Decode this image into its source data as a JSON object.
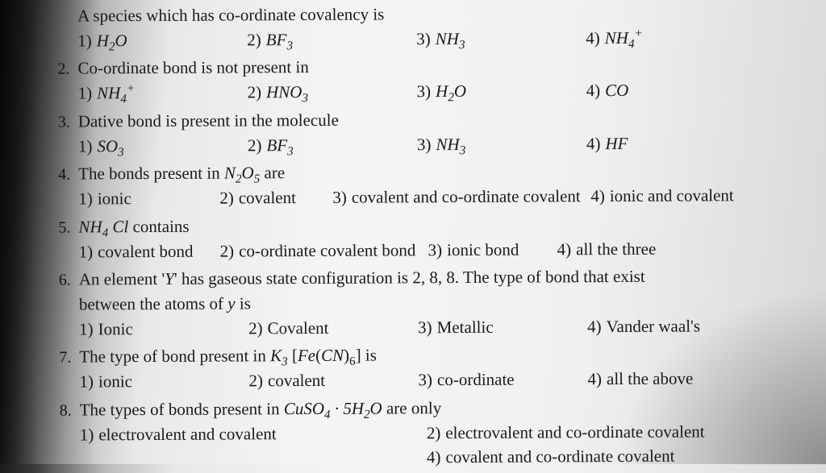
{
  "q1": {
    "stem_prefix": "A species which has co-ordinate covalency is",
    "o1": "H",
    "o1_sub": "2",
    "o1_suffix": "O",
    "o2": "BF",
    "o2_sub": "3",
    "o3": "NH",
    "o3_sub": "3",
    "o4": "NH",
    "o4_sub": "4",
    "o4_sup": "+"
  },
  "q2": {
    "num": "2.",
    "stem": "Co-ordinate bond is not present in",
    "o1": "NH",
    "o1_sub": "4",
    "o1_sup": "+",
    "o2": "HNO",
    "o2_sub": "3",
    "o3": "H",
    "o3_sub": "2",
    "o3_suffix": "O",
    "o4": "CO"
  },
  "q3": {
    "num": "3.",
    "stem": "Dative bond is present in the molecule",
    "o1": "SO",
    "o1_sub": "3",
    "o2": "BF",
    "o2_sub": "3",
    "o3": "NH",
    "o3_sub": "3",
    "o4": "HF"
  },
  "q4": {
    "num": "4.",
    "stem_a": "The bonds present in ",
    "stem_f": "N",
    "stem_s1": "2",
    "stem_f2": "O",
    "stem_s2": "5",
    "stem_b": " are",
    "o1": "ionic",
    "o2": "covalent",
    "o3": "covalent and co-ordinate covalent",
    "o4": "ionic and covalent"
  },
  "q5": {
    "num": "5.",
    "stem_f": "NH",
    "stem_s": "4",
    "stem_f2": " Cl",
    "stem_b": " contains",
    "o1": "covalent bond",
    "o2": "co-ordinate covalent bond",
    "o3": "ionic bond",
    "o4": "all the three"
  },
  "q6": {
    "num": "6.",
    "stem_a": "An element '",
    "stem_y": "Y",
    "stem_b": "' has gaseous state configuration is 2, 8, 8. The type of bond that exist",
    "stem_c": "between the atoms of ",
    "stem_y2": "y",
    "stem_d": " is",
    "o1": "Ionic",
    "o2": "Covalent",
    "o3": "Metallic",
    "o4": "Vander waal's"
  },
  "q7": {
    "num": "7.",
    "stem_a": "The type of bond present in ",
    "stem_f": "K",
    "stem_s": "3",
    "stem_b": " [",
    "stem_fe": "Fe",
    "stem_c": "(",
    "stem_cn": "CN",
    "stem_d": ")",
    "stem_s2": "6",
    "stem_e": "] is",
    "o1": "ionic",
    "o2": "covalent",
    "o3": "co-ordinate",
    "o4": "all the above"
  },
  "q8": {
    "num": "8.",
    "stem_a": "The types of bonds present in ",
    "stem_f": "CuSO",
    "stem_s": "4",
    "stem_dot": " · 5",
    "stem_f2": "H",
    "stem_s2": "2",
    "stem_f3": "O",
    "stem_b": " are only",
    "o1": "electrovalent and covalent",
    "o2": "electrovalent and co-ordinate covalent",
    "o4": "covalent and co-ordinate covalent"
  },
  "labels": {
    "l1": "1)",
    "l2": "2)",
    "l3": "3)",
    "l4": "4)"
  }
}
